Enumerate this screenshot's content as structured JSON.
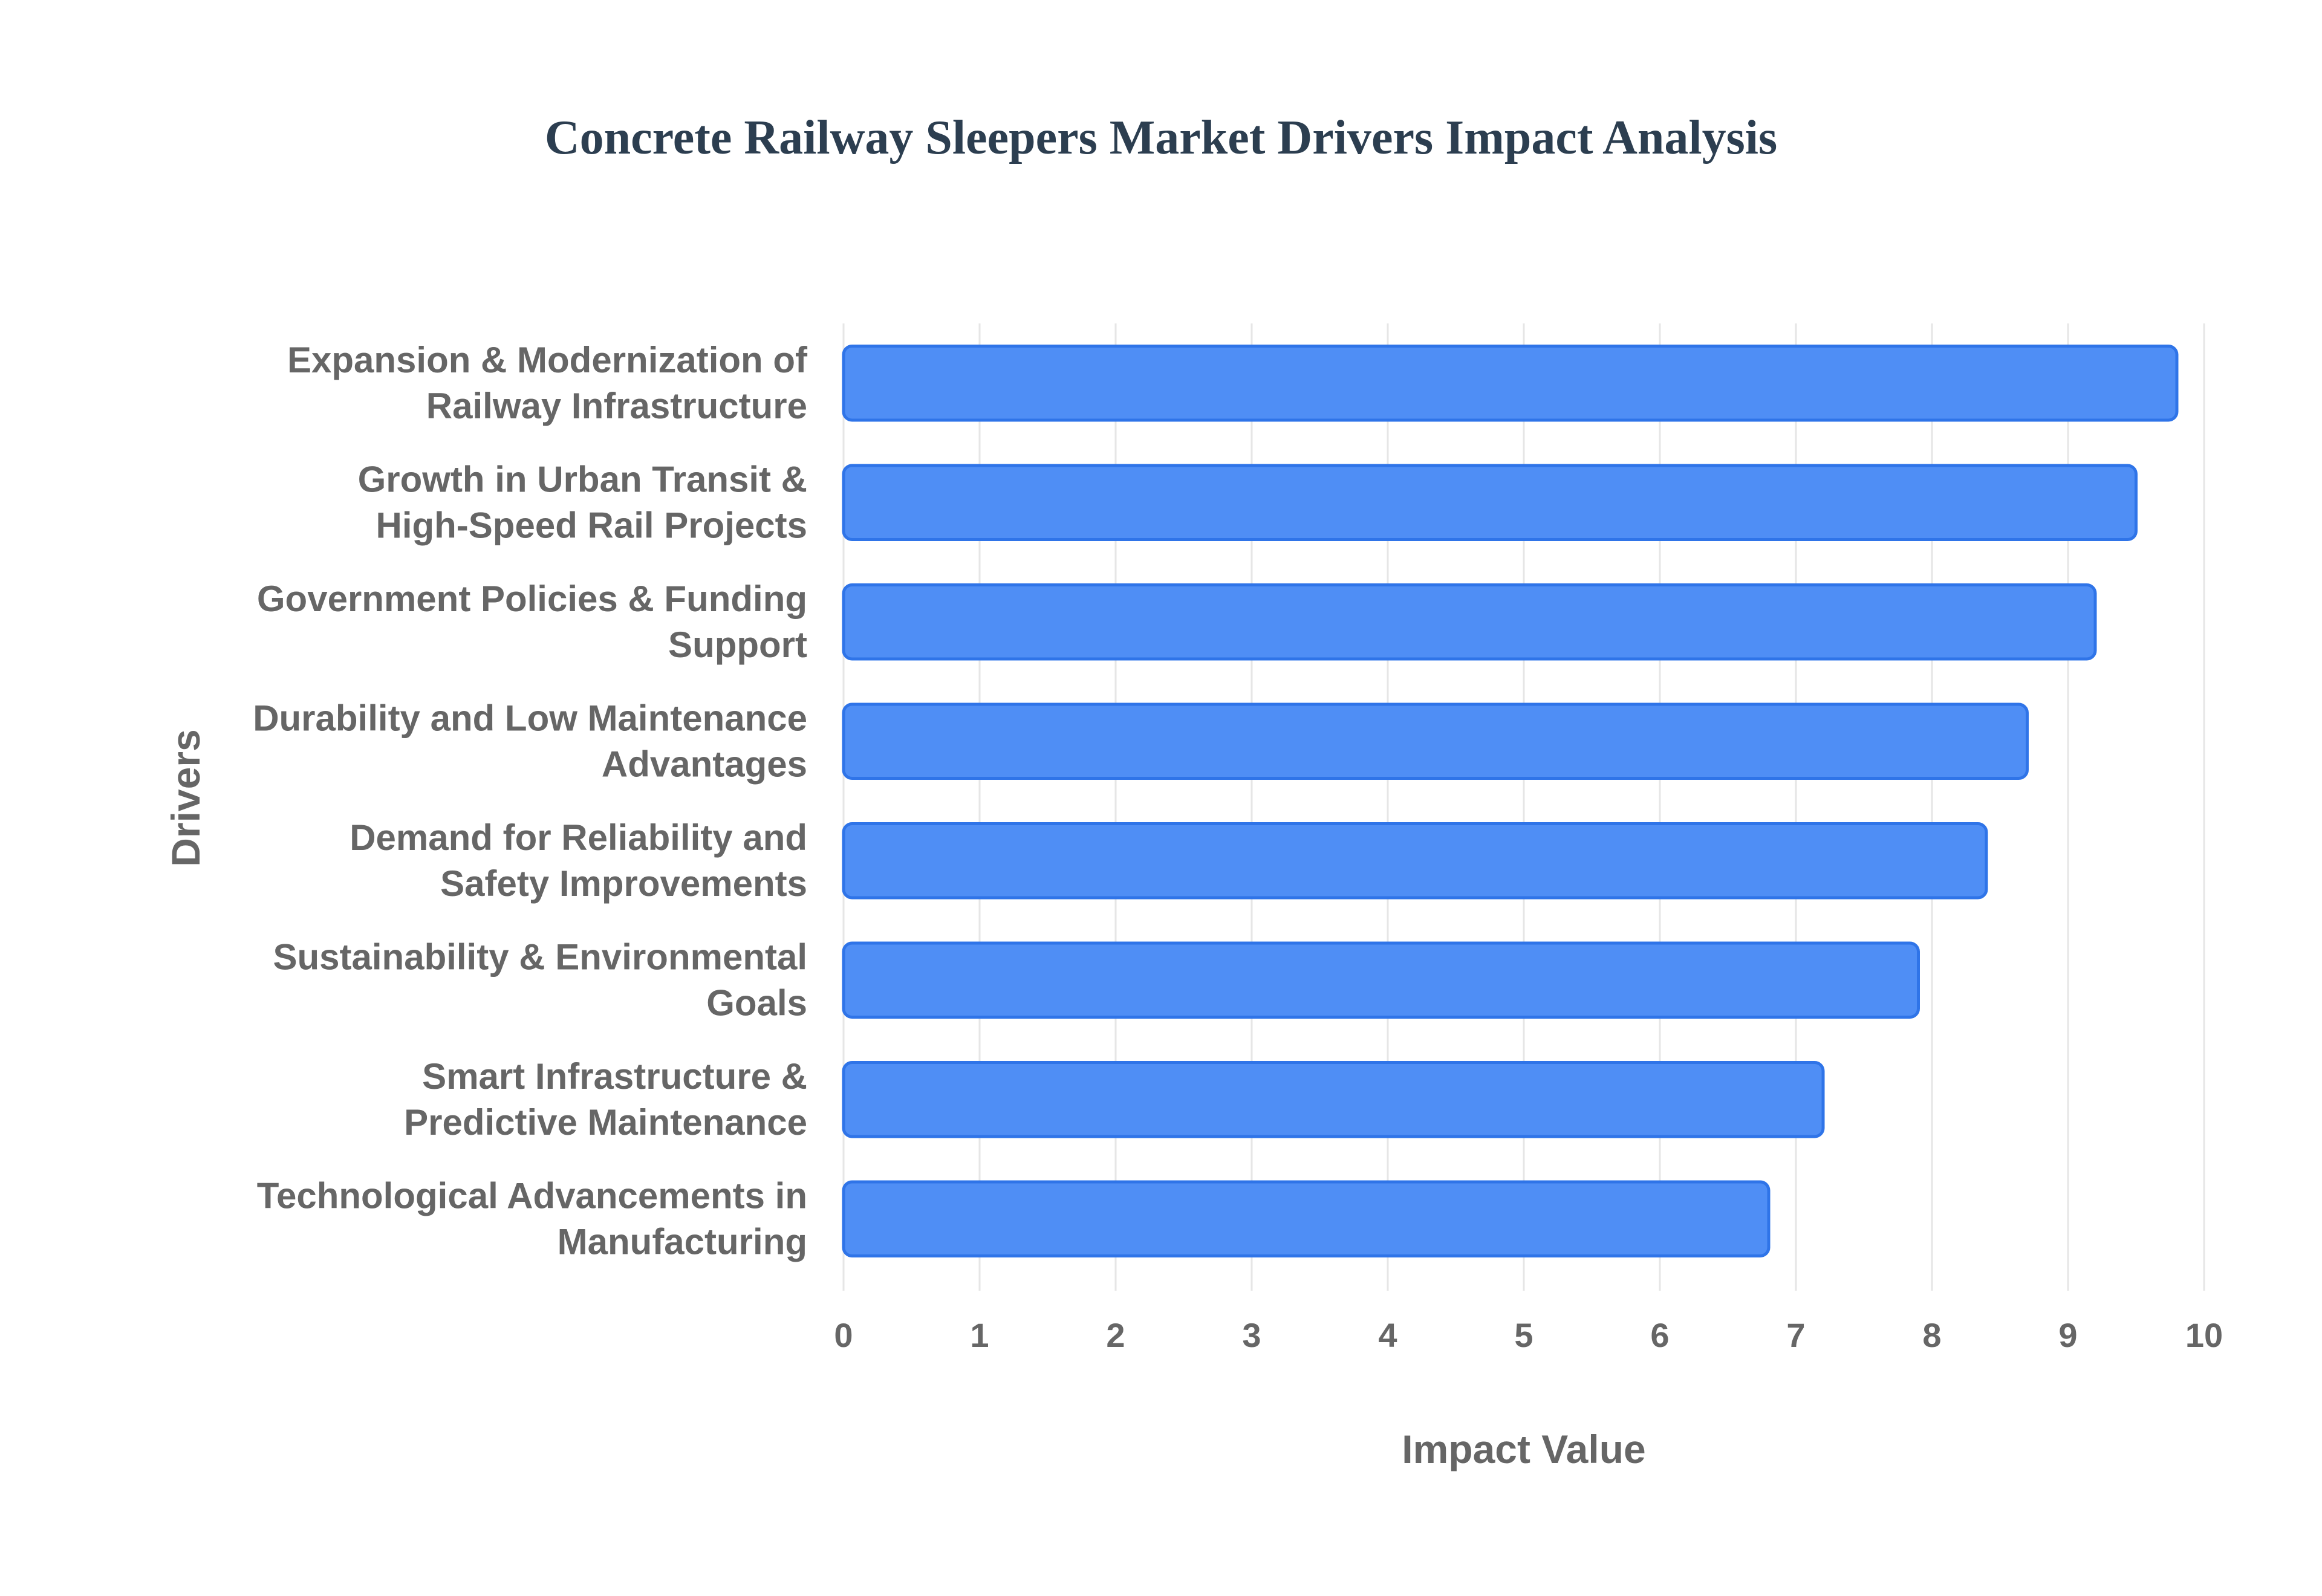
{
  "chart_data": {
    "type": "bar",
    "orientation": "horizontal",
    "title": "Concrete Railway Sleepers Market Drivers Impact Analysis",
    "xlabel": "Impact Value",
    "ylabel": "Drivers",
    "xlim": [
      0,
      10
    ],
    "xticks": [
      "0",
      "1",
      "2",
      "3",
      "4",
      "5",
      "6",
      "7",
      "8",
      "9",
      "10"
    ],
    "grid": true,
    "legend": "none",
    "categories": [
      [
        "Expansion & Modernization of",
        "Railway Infrastructure"
      ],
      [
        "Growth in Urban Transit &",
        "High-Speed Rail Projects"
      ],
      [
        "Government Policies & Funding",
        "Support"
      ],
      [
        "Durability and Low Maintenance",
        "Advantages"
      ],
      [
        "Demand for Reliability and",
        "Safety Improvements"
      ],
      [
        "Sustainability & Environmental",
        "Goals"
      ],
      [
        "Smart Infrastructure &",
        "Predictive Maintenance"
      ],
      [
        "Technological Advancements in",
        "Manufacturing"
      ]
    ],
    "values": [
      9.8,
      9.5,
      9.2,
      8.7,
      8.4,
      7.9,
      7.2,
      6.8
    ],
    "colors": {
      "bar_fill": "#4f8ef5",
      "bar_stroke": "#2f74e8"
    }
  }
}
